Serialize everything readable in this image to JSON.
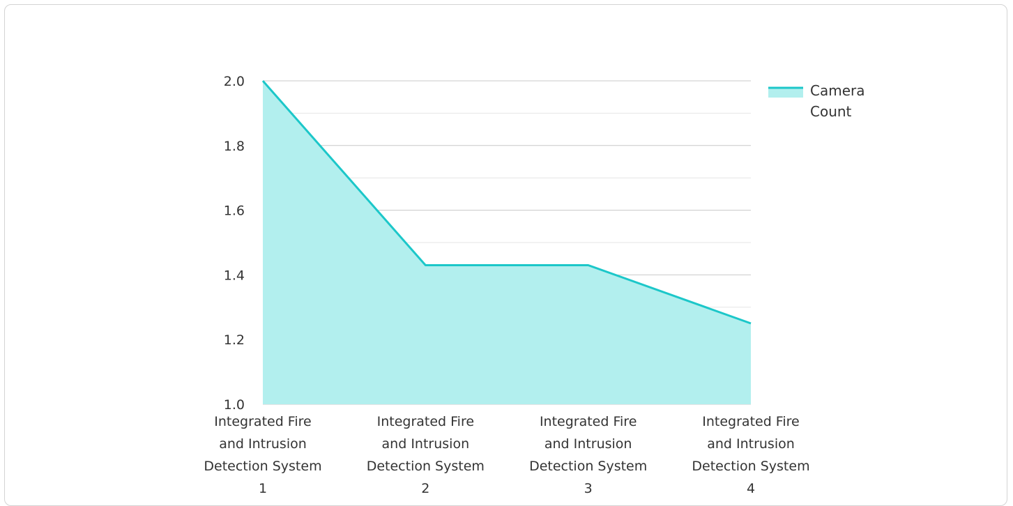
{
  "chart_data": {
    "type": "area",
    "categories": [
      [
        "Integrated Fire",
        "and Intrusion",
        "Detection System",
        "1"
      ],
      [
        "Integrated Fire",
        "and Intrusion",
        "Detection System",
        "2"
      ],
      [
        "Integrated Fire",
        "and Intrusion",
        "Detection System",
        "3"
      ],
      [
        "Integrated Fire",
        "and Intrusion",
        "Detection System",
        "4"
      ]
    ],
    "series": [
      {
        "name": "Camera Count",
        "legend_lines": [
          "Camera",
          "Count"
        ],
        "values": [
          2.0,
          1.43,
          1.43,
          1.25
        ],
        "color": "#1cc7c9",
        "fill": "#b2efee"
      }
    ],
    "ylim": [
      1.0,
      2.0
    ],
    "yticks": [
      "1.0",
      "1.2",
      "1.4",
      "1.6",
      "1.8",
      "2.0"
    ],
    "grid": true,
    "legend_position": "top-right",
    "title": "",
    "xlabel": "",
    "ylabel": ""
  }
}
